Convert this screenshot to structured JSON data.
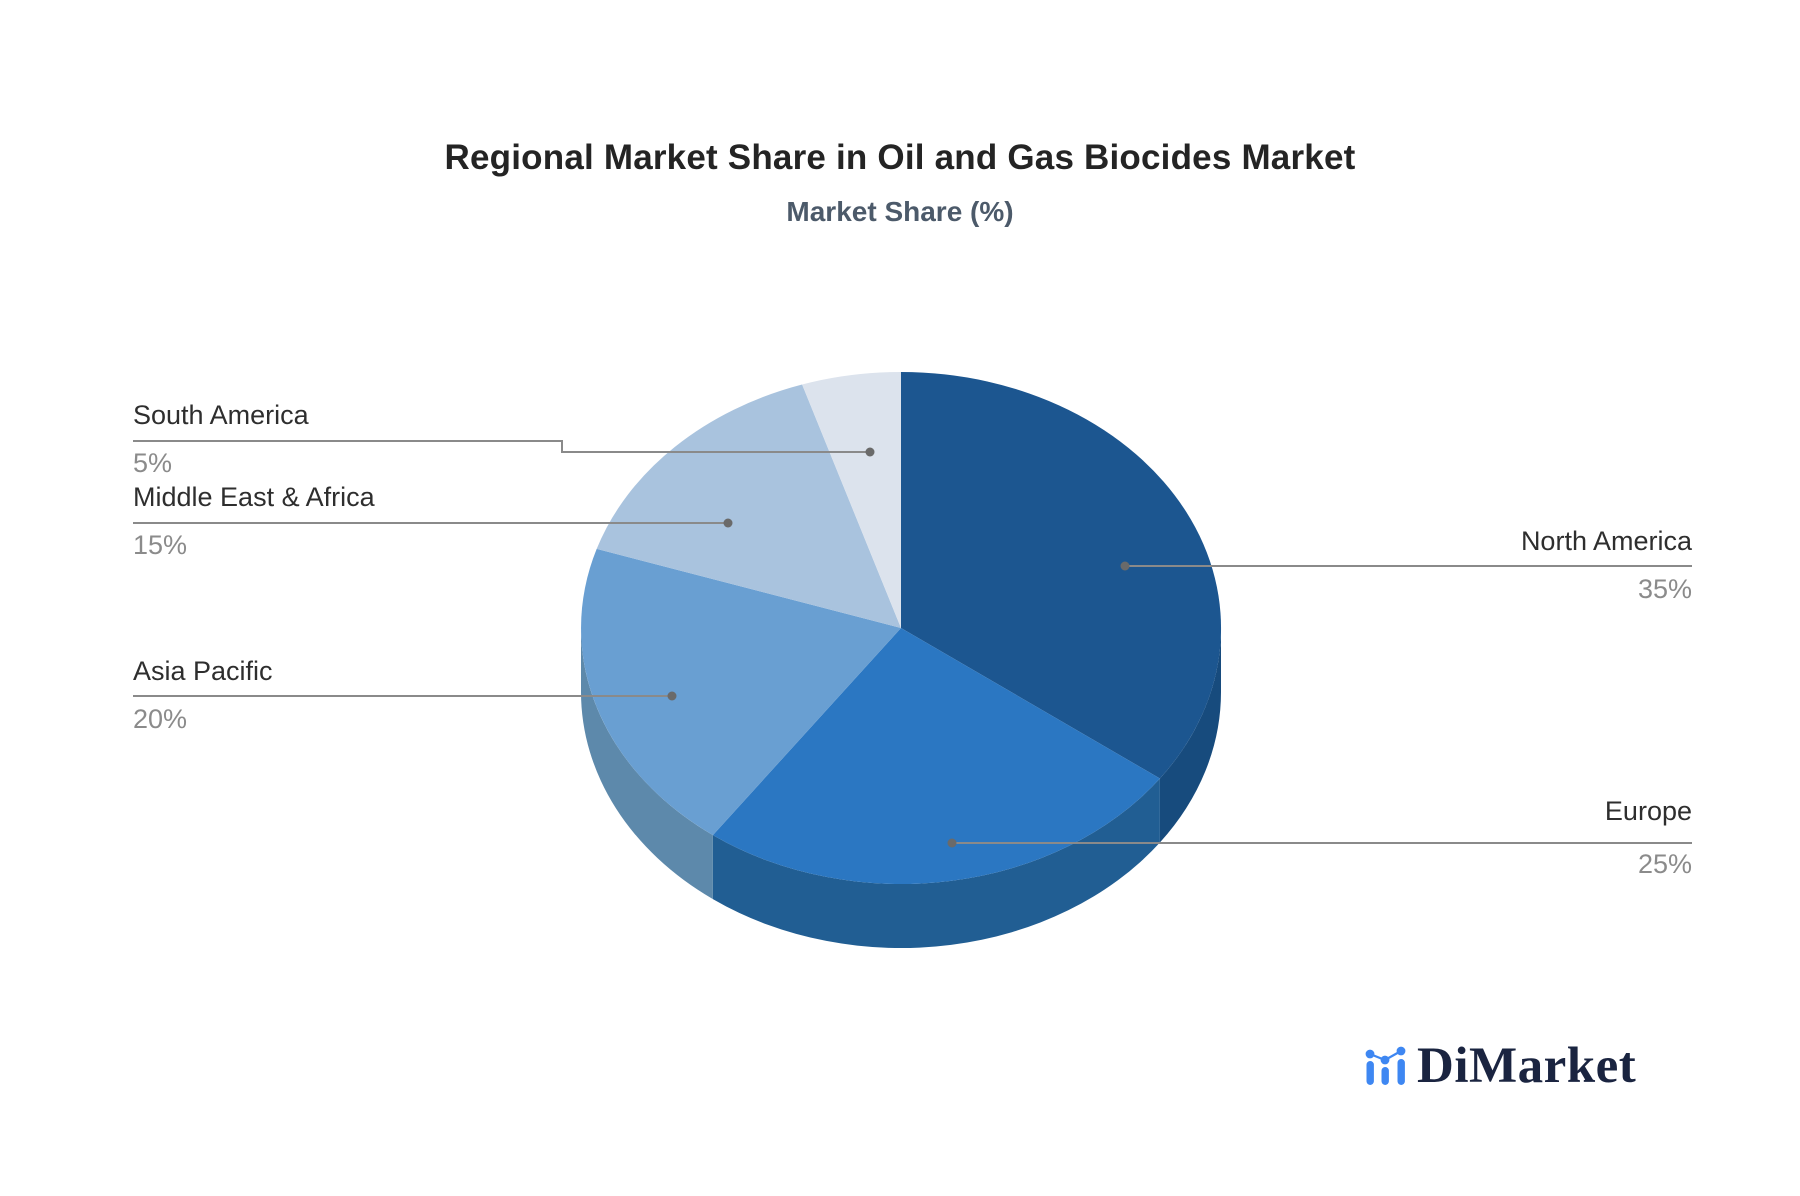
{
  "header": {
    "title": "Regional Market Share in Oil and Gas Biocides Market",
    "subtitle": "Market Share (%)"
  },
  "chart_data": {
    "type": "pie",
    "style": "3d",
    "title": "Regional Market Share in Oil and Gas Biocides Market",
    "subtitle": "Market Share (%)",
    "unit": "%",
    "start_angle_deg": 0,
    "direction": "clockwise",
    "legend": "none",
    "slices": [
      {
        "label": "North America",
        "value": 35,
        "pct": "35%",
        "color": "#1c5690",
        "side_color": "#174b7d",
        "label_side": "right"
      },
      {
        "label": "Europe",
        "value": 25,
        "pct": "25%",
        "color": "#2b77c2",
        "side_color": "#215e93",
        "label_side": "right"
      },
      {
        "label": "Asia Pacific",
        "value": 20,
        "pct": "20%",
        "color": "#699fd2",
        "side_color": "#5d89ab",
        "label_side": "left"
      },
      {
        "label": "Middle East & Africa",
        "value": 15,
        "pct": "15%",
        "color": "#a9c3de",
        "side_color": "#8fb3d6",
        "label_side": "left"
      },
      {
        "label": "South America",
        "value": 5,
        "pct": "5%",
        "color": "#dce3ed",
        "side_color": "#c2d0e2",
        "label_side": "left"
      }
    ],
    "colors": {
      "connector": "#8a8a8a",
      "dot": "#6a6a6a",
      "label_text": "#2e2e2e",
      "label_pct": "#8b8b8b",
      "title_text": "#242424",
      "subtitle_text": "#4c5a6a"
    }
  },
  "branding": {
    "logo_text": "DiMarket",
    "logo_icon": "bar-chart-trend-icon",
    "logo_text_color": "#1a2440",
    "logo_icon_color": "#3e87f2"
  }
}
